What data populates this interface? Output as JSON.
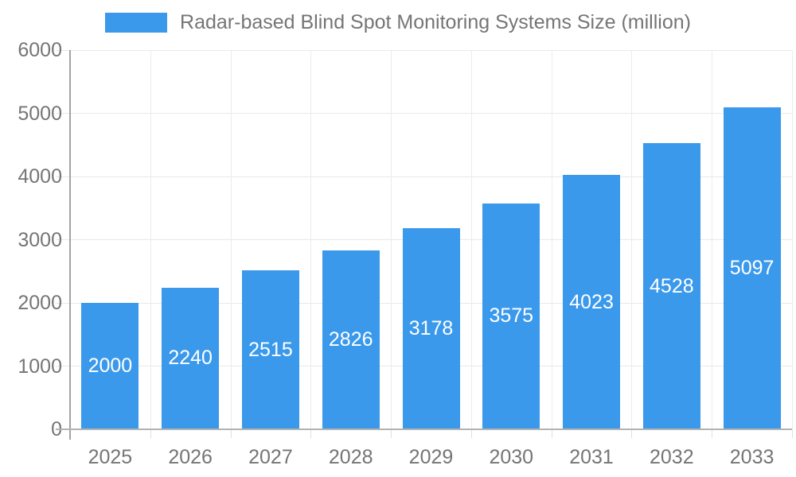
{
  "chart_data": {
    "type": "bar",
    "title": "Radar-based Blind Spot Monitoring Systems Size (million)",
    "categories": [
      "2025",
      "2026",
      "2027",
      "2028",
      "2029",
      "2030",
      "2031",
      "2032",
      "2033"
    ],
    "series": [
      {
        "name": "Radar-based Blind Spot Monitoring Systems Size (million)",
        "values": [
          2000,
          2240,
          2515,
          2826,
          3178,
          3575,
          4023,
          4528,
          5097
        ]
      }
    ],
    "xlabel": "",
    "ylabel": "",
    "ylim": [
      0,
      6000
    ],
    "ytick_interval": 1000,
    "yticks": [
      0,
      1000,
      2000,
      3000,
      4000,
      5000,
      6000
    ],
    "grid": true,
    "legend_position": "top",
    "value_labels": "inside-center"
  },
  "colors": {
    "bar": "#3B99EC",
    "value_label": "#FFFFFF",
    "axis_label": "#757575",
    "legend_label": "#757575",
    "gridline": "#E8E8E8",
    "axis_line": "#A3A3A3",
    "baseline": "#B3B3B3",
    "background": "#FFFFFF"
  }
}
